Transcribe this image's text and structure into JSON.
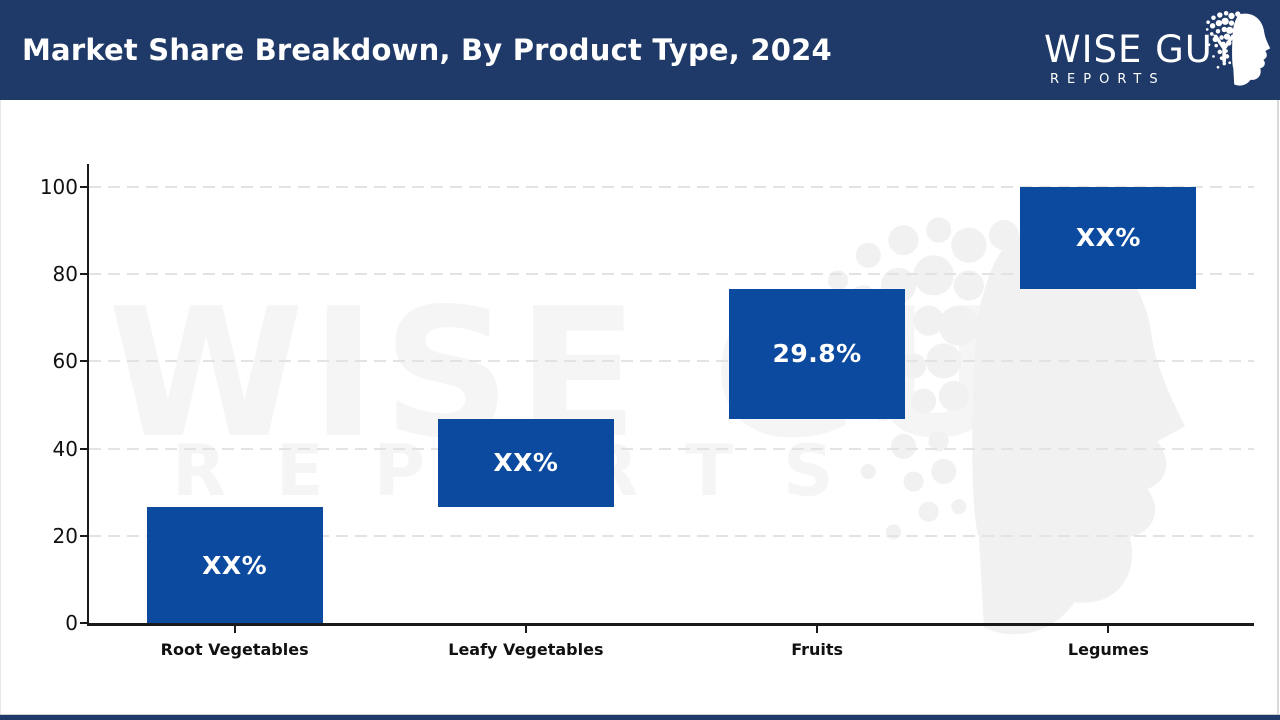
{
  "header": {
    "title": "Market Share Breakdown, By Product Type, 2024",
    "logo": {
      "wordmark": "WISE GUY",
      "tagline": "REPORTS"
    },
    "bg_color": "#1f3a68"
  },
  "watermark": {
    "line1": "WISE GU",
    "line2": "REPORTS"
  },
  "chart_data": {
    "type": "bar",
    "subtype": "floating-waterfall",
    "title": "Market Share Breakdown, By Product Type, 2024",
    "xlabel": "",
    "ylabel": "",
    "ylim": [
      0,
      105
    ],
    "yticks": [
      0,
      20,
      40,
      60,
      80,
      100
    ],
    "grid": "horizontal-dashed",
    "legend": "none",
    "categories": [
      "Root Vegetables",
      "Leafy Vegetables",
      "Fruits",
      "Legumes"
    ],
    "segments": [
      {
        "category": "Root Vegetables",
        "start": 0,
        "end": 26.6,
        "value_pct": 26.6,
        "label": "XX%"
      },
      {
        "category": "Leafy Vegetables",
        "start": 26.6,
        "end": 46.9,
        "value_pct": 20.3,
        "label": "XX%"
      },
      {
        "category": "Fruits",
        "start": 46.9,
        "end": 76.7,
        "value_pct": 29.8,
        "label": "29.8%"
      },
      {
        "category": "Legumes",
        "start": 76.7,
        "end": 100,
        "value_pct": 23.3,
        "label": "XX%"
      }
    ],
    "bar_color": "#0b4a9f",
    "bar_label_color": "#ffffff",
    "gridline_color": "#e3e3e3",
    "axis_color": "#1a1a1a",
    "tick_label_color": "#111111"
  }
}
